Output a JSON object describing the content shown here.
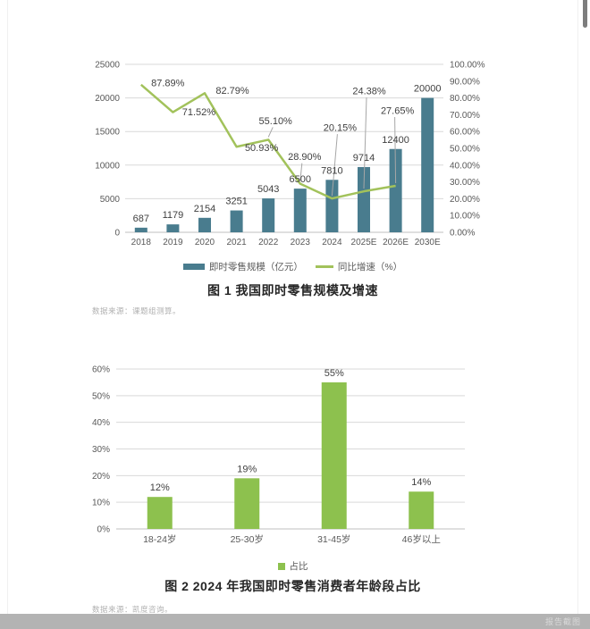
{
  "watermark": "报告截图",
  "chart_data": [
    {
      "type": "bar+line",
      "title": "图 1 我国即时零售规模及增速",
      "source": "数据来源：课题组测算。",
      "categories": [
        "2018",
        "2019",
        "2020",
        "2021",
        "2022",
        "2023",
        "2024",
        "2025E",
        "2026E",
        "2030E"
      ],
      "series": [
        {
          "name": "即时零售规模（亿元）",
          "chart": "bar",
          "axis": "left",
          "values": [
            687,
            1179,
            2154,
            3251,
            5043,
            6500,
            7810,
            9714,
            12400,
            20000
          ]
        },
        {
          "name": "同比增速（%）",
          "chart": "line",
          "axis": "right",
          "values": [
            87.89,
            71.52,
            82.79,
            50.93,
            55.1,
            28.9,
            20.15,
            24.38,
            27.65,
            null
          ]
        }
      ],
      "left_axis": {
        "min": 0,
        "max": 25000,
        "step": 5000
      },
      "right_axis": {
        "min": 0,
        "max": 100,
        "step": 10,
        "tick_format": "0.00%"
      },
      "grid": true,
      "legend_position": "bottom",
      "bar_color": "#497C8E",
      "line_color": "#A2C25B"
    },
    {
      "type": "bar",
      "title": "图 2 2024 年我国即时零售消费者年龄段占比",
      "source": "数据来源：凯度咨询。",
      "categories": [
        "18-24岁",
        "25-30岁",
        "31-45岁",
        "46岁以上"
      ],
      "series": [
        {
          "name": "占比",
          "values": [
            12,
            19,
            55,
            14
          ]
        }
      ],
      "y_axis": {
        "min": 0,
        "max": 60,
        "step": 10,
        "tick_format": "0%"
      },
      "grid": true,
      "legend_position": "bottom",
      "bar_color": "#8DC14E"
    }
  ]
}
